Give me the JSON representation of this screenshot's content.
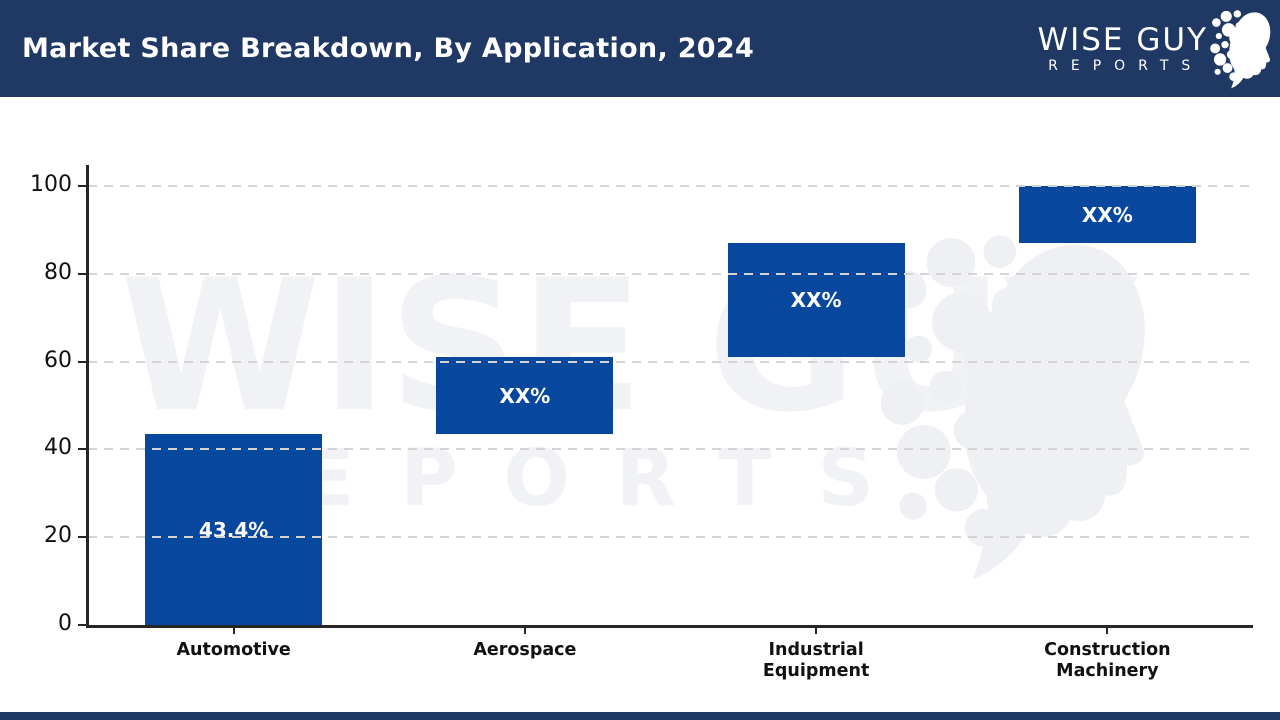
{
  "header": {
    "title": "Market Share Breakdown, By Application, 2024",
    "logo": {
      "brand": "WISE GUY",
      "sub": "REPORTS"
    }
  },
  "watermark": {
    "brand": "WISE GUY",
    "sub": "REPORTS"
  },
  "colors": {
    "header_bg": "#1f3864",
    "bar": "#08479e",
    "bar_label": "#ffffff",
    "gridline": "#d4d4d4",
    "axis": "#262626",
    "watermark": "#f1f2f5"
  },
  "chart_data": {
    "type": "bar",
    "subtype": "waterfall",
    "title": "Market Share Breakdown, By Application, 2024",
    "categories": [
      "Automotive",
      "Aerospace",
      "Industrial\nEquipment",
      "Construction\nMachinery"
    ],
    "segments": [
      {
        "category": "Automotive",
        "start": 0,
        "end": 43.4,
        "label": "43.4%"
      },
      {
        "category": "Aerospace",
        "start": 43.4,
        "end": 61,
        "label": "XX%"
      },
      {
        "category": "Industrial Equipment",
        "start": 61,
        "end": 87,
        "label": "XX%"
      },
      {
        "category": "Construction Machinery",
        "start": 87,
        "end": 100,
        "label": "XX%"
      }
    ],
    "y_ticks": [
      0,
      20,
      40,
      60,
      80,
      100
    ],
    "ylim": [
      0,
      100
    ],
    "xlabel": "",
    "ylabel": "",
    "grid": "horizontal-dashed",
    "gridlines_above_bars": true,
    "legend": "none"
  }
}
